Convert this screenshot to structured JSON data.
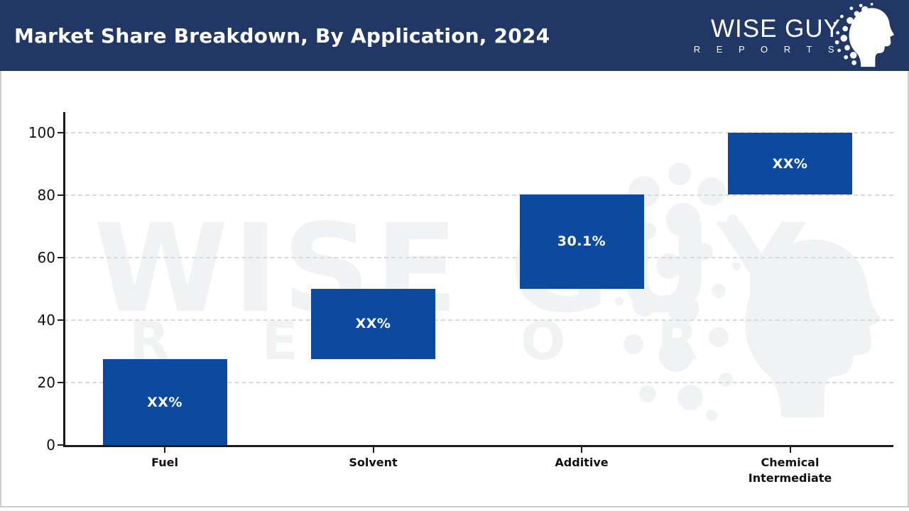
{
  "header": {
    "title": "Market Share Breakdown, By Application, 2024",
    "logo": {
      "line1": "WISE GUY",
      "line2": "R E P O R T S",
      "icon": "dotted-head-profile"
    }
  },
  "watermark": {
    "line1": "WISE GUY",
    "line2": "R E P O R T S"
  },
  "chart_data": {
    "type": "bar",
    "subtype": "waterfall",
    "title": "Market Share Breakdown, By Application, 2024",
    "xlabel": "",
    "ylabel": "",
    "categories": [
      "Fuel",
      "Solvent",
      "Additive",
      "Chemical Intermediate"
    ],
    "segments": [
      {
        "category": "Fuel",
        "start": 0,
        "end": 27.4,
        "value_label": "XX%"
      },
      {
        "category": "Solvent",
        "start": 27.5,
        "end": 50.1,
        "value_label": "XX%"
      },
      {
        "category": "Additive",
        "start": 50.1,
        "end": 80.2,
        "value_label": "30.1%"
      },
      {
        "category": "Chemical Intermediate",
        "start": 80.2,
        "end": 100,
        "value_label": "XX%"
      }
    ],
    "yticks": [
      0,
      20,
      40,
      60,
      80,
      100
    ],
    "ylim": [
      0,
      105
    ],
    "grid": "horizontal-dashed",
    "legend": "none",
    "colors": {
      "bar": "#0b4a9f",
      "bar_label": "#ffffff",
      "header_bg": "#213765",
      "axis": "#1a1a1a",
      "gridline": "#d9d9d9",
      "watermark": "#f1f2f4",
      "border": "#cccccc"
    }
  }
}
